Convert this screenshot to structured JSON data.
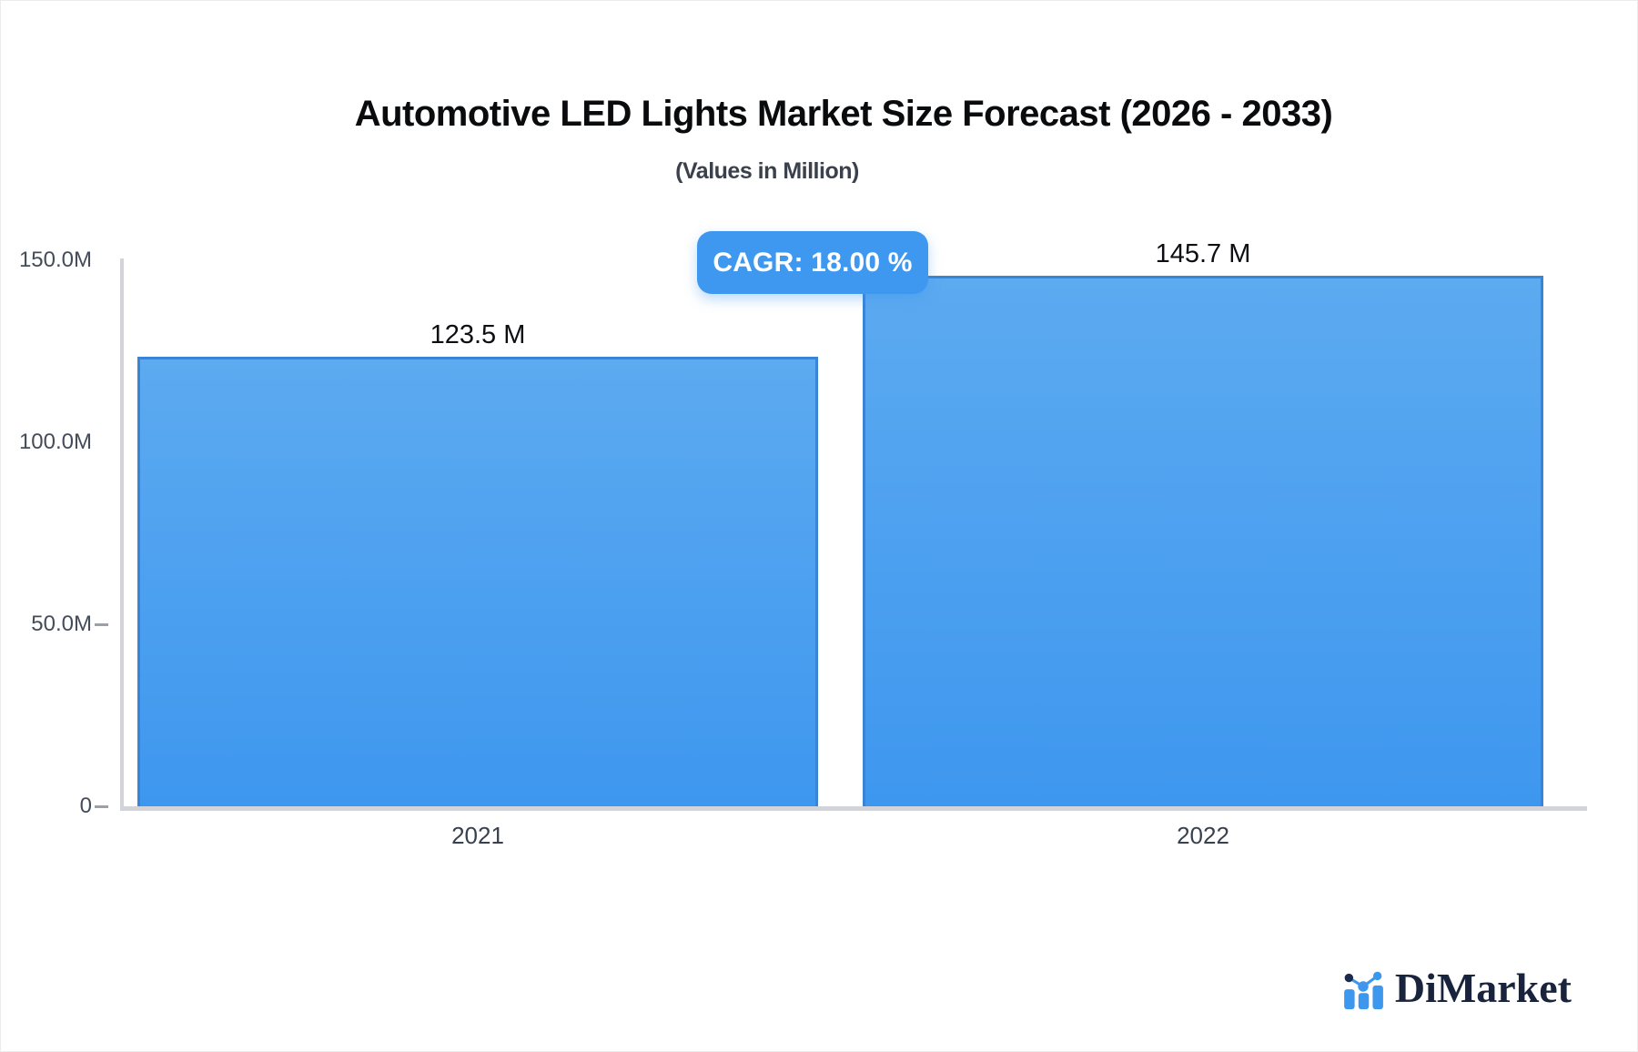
{
  "chart_data": {
    "type": "bar",
    "title": "Automotive LED Lights Market Size Forecast (2026 - 2033)",
    "subtitle": "(Values in Million)",
    "cagr_label": "CAGR: 18.00 %",
    "categories": [
      "2021",
      "2022"
    ],
    "values": [
      123.5,
      145.7
    ],
    "bar_labels": [
      "123.5 M",
      "145.7 M"
    ],
    "xlabel": "",
    "ylabel": "",
    "ylim": [
      0,
      150
    ],
    "yticks": [
      {
        "value": 150,
        "label": "150.0M",
        "dash": false
      },
      {
        "value": 100,
        "label": "100.0M",
        "dash": false
      },
      {
        "value": 50,
        "label": "50.0M",
        "dash": true
      },
      {
        "value": 0,
        "label": "0",
        "dash": true
      }
    ],
    "grid": false,
    "legend": false,
    "colors": {
      "bar_fill_top": "#5caaf0",
      "bar_fill_bottom": "#3e97ef",
      "bar_border": "#3a84d8",
      "badge_bg": "#3e98f0",
      "axis": "#d2d4d9",
      "logo_blue": "#3e97ef",
      "logo_navy": "#1b2b4d"
    }
  },
  "branding": {
    "name": "DiMarket"
  }
}
